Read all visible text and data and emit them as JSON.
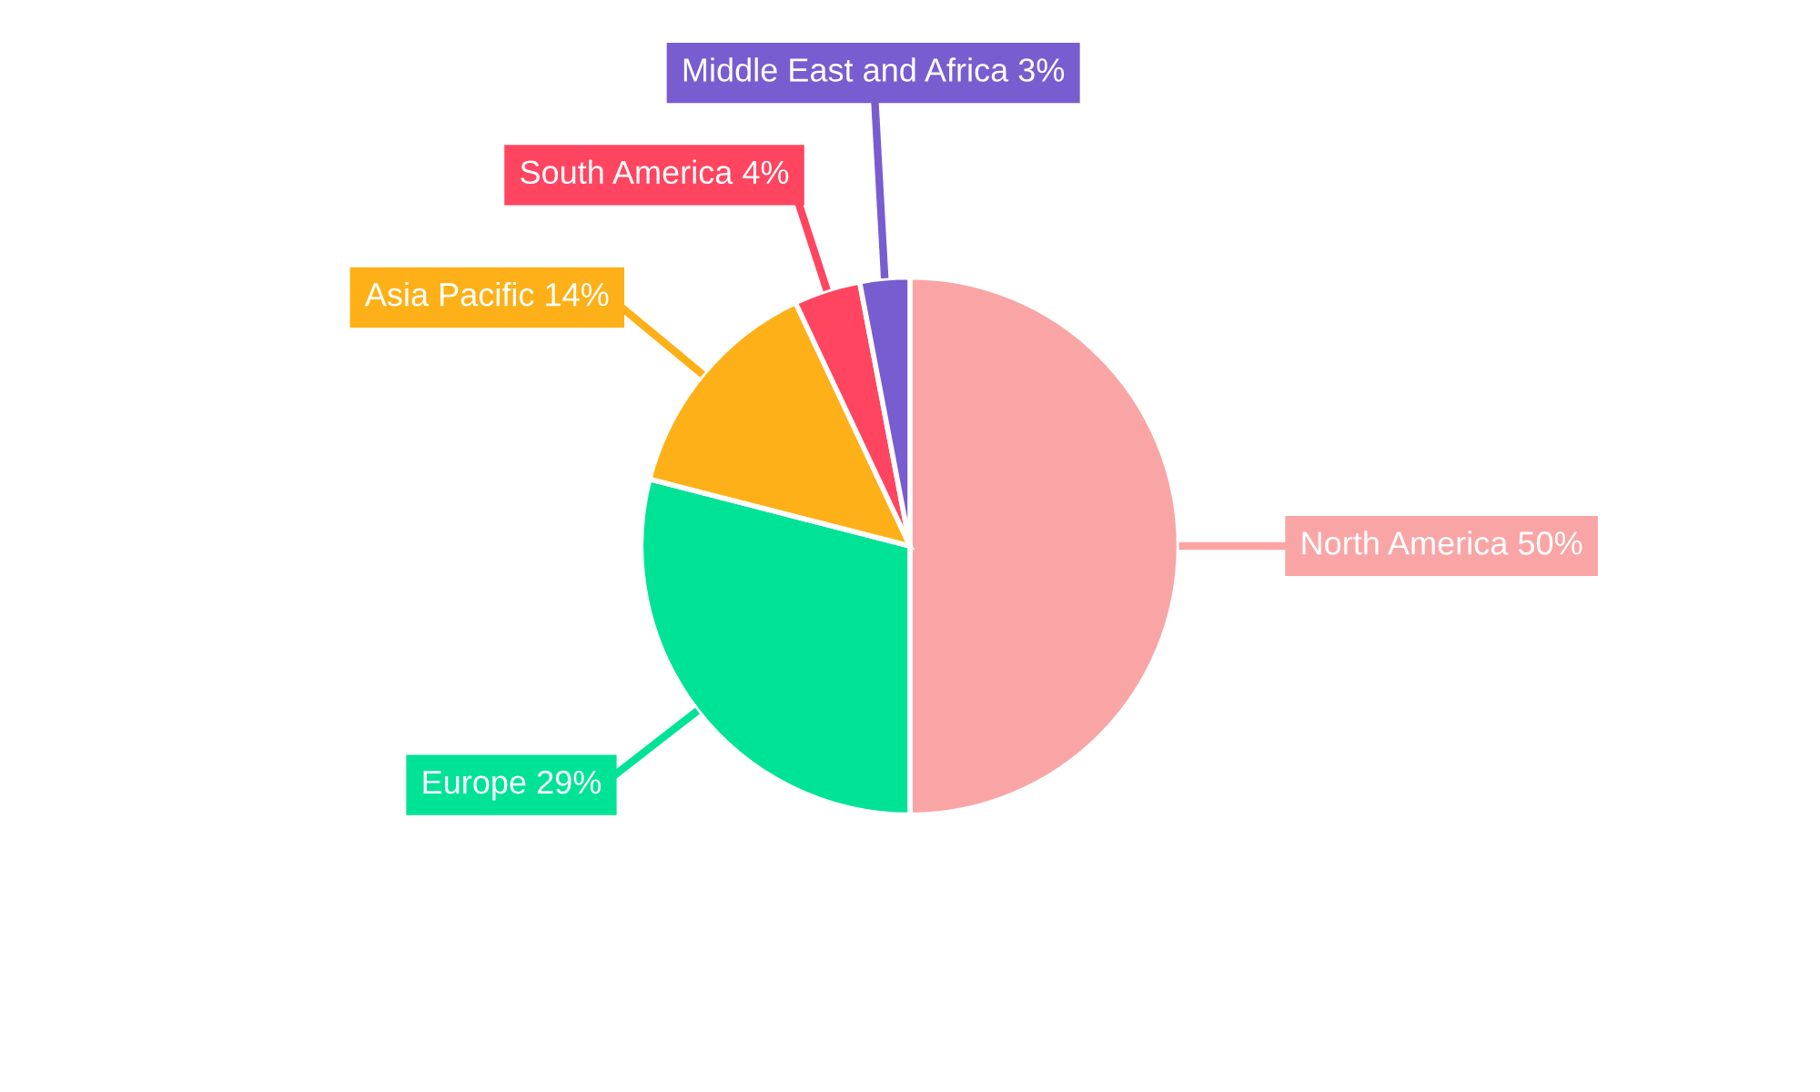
{
  "chart_data": {
    "type": "pie",
    "categories": [
      "North America",
      "Europe",
      "Asia Pacific",
      "South America",
      "Middle East and Africa"
    ],
    "values": [
      50,
      29,
      14,
      4,
      3
    ],
    "value_labels": [
      "50%",
      "29%",
      "14%",
      "4%",
      "3%"
    ],
    "colors": [
      "#f9a5a6",
      "#00e396",
      "#feb019",
      "#ff4560",
      "#775dd0"
    ],
    "legend": false
  }
}
